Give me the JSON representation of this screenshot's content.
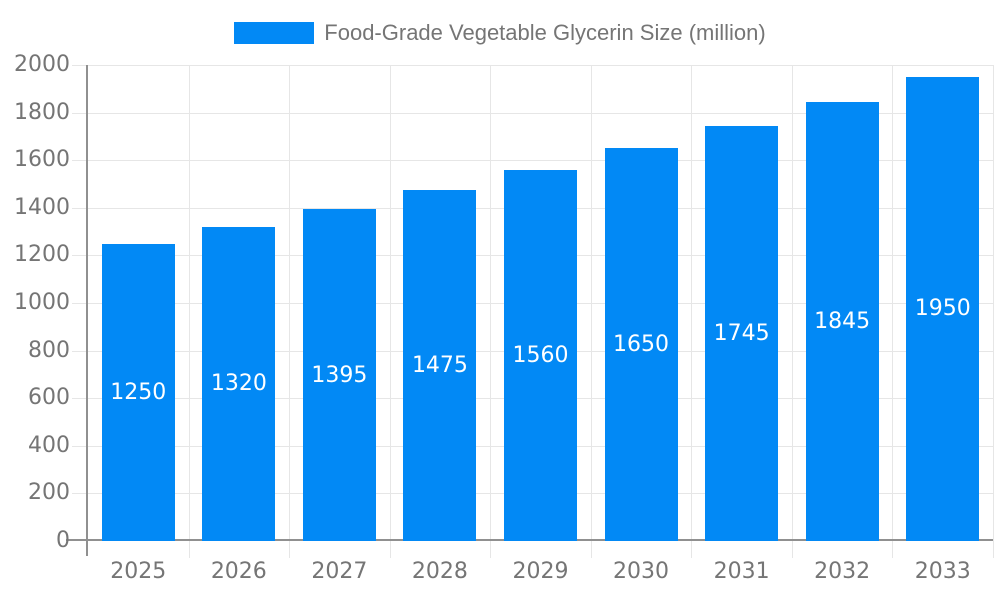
{
  "legend": {
    "position": "top-center",
    "items": [
      {
        "label": "Food-Grade Vegetable Glycerin Size (million)",
        "color": "#0289f5"
      }
    ]
  },
  "chart_data": {
    "type": "bar",
    "title": "Food-Grade Vegetable Glycerin Size (million)",
    "categories": [
      "2025",
      "2026",
      "2027",
      "2028",
      "2029",
      "2030",
      "2031",
      "2032",
      "2033"
    ],
    "series": [
      {
        "name": "Food-Grade Vegetable Glycerin Size (million)",
        "values": [
          1250,
          1320,
          1395,
          1475,
          1560,
          1650,
          1745,
          1845,
          1950
        ]
      }
    ],
    "value_labels": [
      1250,
      1320,
      1395,
      1475,
      1560,
      1650,
      1745,
      1845,
      1950
    ],
    "value_label_position": "inside-center",
    "xlabel": "",
    "ylabel": "",
    "ylim": [
      0,
      2000
    ],
    "ytick_step": 200,
    "ytick_labels": [
      "0",
      "200",
      "400",
      "600",
      "800",
      "1000",
      "1200",
      "1400",
      "1600",
      "1800",
      "2000"
    ],
    "grid": true,
    "legend_position": "top-center",
    "colors": {
      "bar": "#0289f5",
      "grid": "#e6e6e6",
      "axis_line": "#909090",
      "axis_text": "#757575",
      "value_label": "#ffffff",
      "background": "#ffffff"
    }
  }
}
